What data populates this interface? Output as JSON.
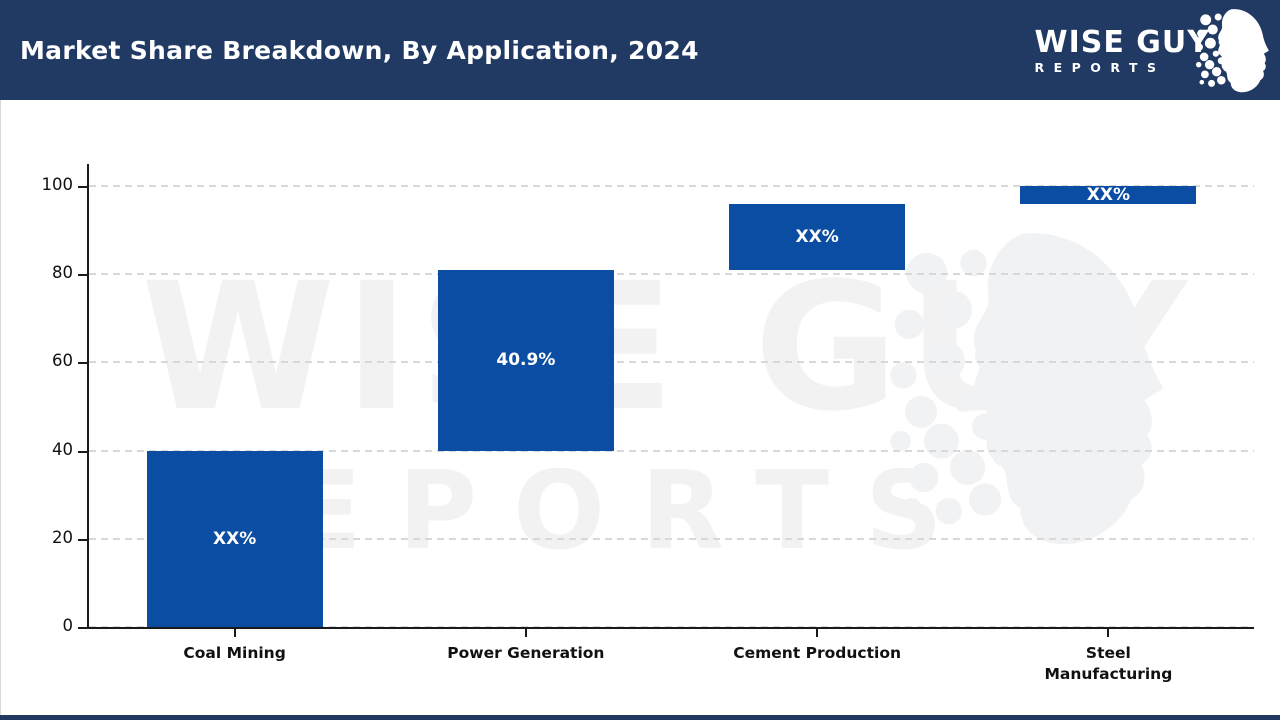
{
  "header": {
    "title": "Market Share Breakdown, By Application, 2024",
    "logo": {
      "line1": "WISE GUY",
      "line2": "REPORTS"
    }
  },
  "watermark": {
    "line1": "WISE GUY",
    "line2": "REPORTS"
  },
  "chart_data": {
    "type": "bar",
    "subtype": "waterfall-floating-bars",
    "title": "Market Share Breakdown, By Application, 2024",
    "categories": [
      "Coal Mining",
      "Power Generation",
      "Cement Production",
      "Steel\nManufacturing"
    ],
    "series": [
      {
        "name": "Market share (%)",
        "segments": [
          {
            "category": "Coal Mining",
            "start": 0,
            "end": 40,
            "value": 40,
            "label": "XX%"
          },
          {
            "category": "Power Generation",
            "start": 40,
            "end": 80.9,
            "value": 40.9,
            "label": "40.9%"
          },
          {
            "category": "Cement Production",
            "start": 80.9,
            "end": 96,
            "value": 15.1,
            "label": "XX%"
          },
          {
            "category": "Steel Manufacturing",
            "start": 96,
            "end": 100,
            "value": 4,
            "label": "XX%"
          }
        ]
      }
    ],
    "xlabel": "",
    "ylabel": "",
    "yticks": [
      0,
      20,
      40,
      60,
      80,
      100
    ],
    "ylim": [
      0,
      105
    ],
    "grid": "horizontal-dashed",
    "legend": "none",
    "colors": {
      "bar": "#0b4da2",
      "bar_label": "#ffffff",
      "grid": "#d8d8d8",
      "axis": "#1a1a1a",
      "tick_label": "#111111"
    }
  },
  "theme": {
    "header_bg": "#213a64",
    "page_bg": "#ffffff",
    "watermark_color": "#f2f2f2"
  }
}
